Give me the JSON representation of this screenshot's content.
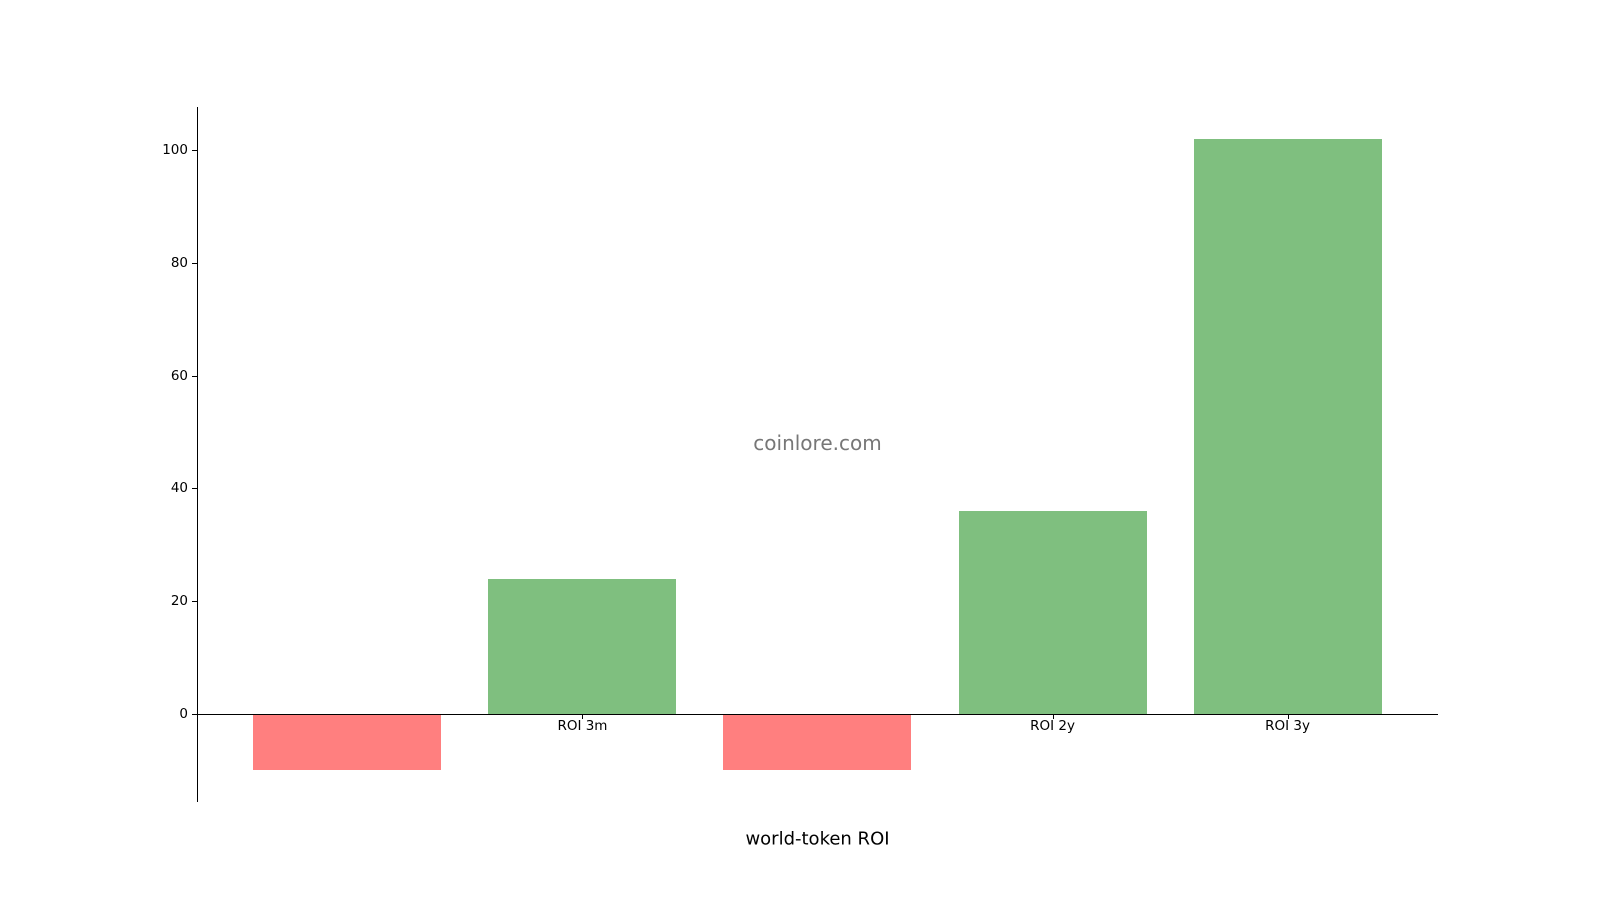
{
  "watermark": "coinlore.com",
  "colors": {
    "positive_bar": "#7fbf7f",
    "negative_bar": "#ff7f7f",
    "axis": "#000000",
    "watermark_text": "#777777",
    "background": "#ffffff"
  },
  "chart_data": {
    "type": "bar",
    "title": "",
    "xlabel": "world-token ROI",
    "ylabel": "",
    "categories": [
      "",
      "ROI 3m",
      "",
      "ROI 2y",
      "ROI 3y"
    ],
    "values": [
      -10,
      24,
      -10,
      36,
      102
    ],
    "bar_colors": [
      "#ff7f7f",
      "#7fbf7f",
      "#ff7f7f",
      "#7fbf7f",
      "#7fbf7f"
    ],
    "yticks": [
      0,
      20,
      40,
      60,
      80,
      100
    ],
    "ylim": [
      -15.6,
      107.6
    ],
    "xlim": [
      -0.64,
      4.64
    ],
    "bar_width": 0.8,
    "grid": false,
    "legend": false,
    "watermark": "coinlore.com"
  }
}
